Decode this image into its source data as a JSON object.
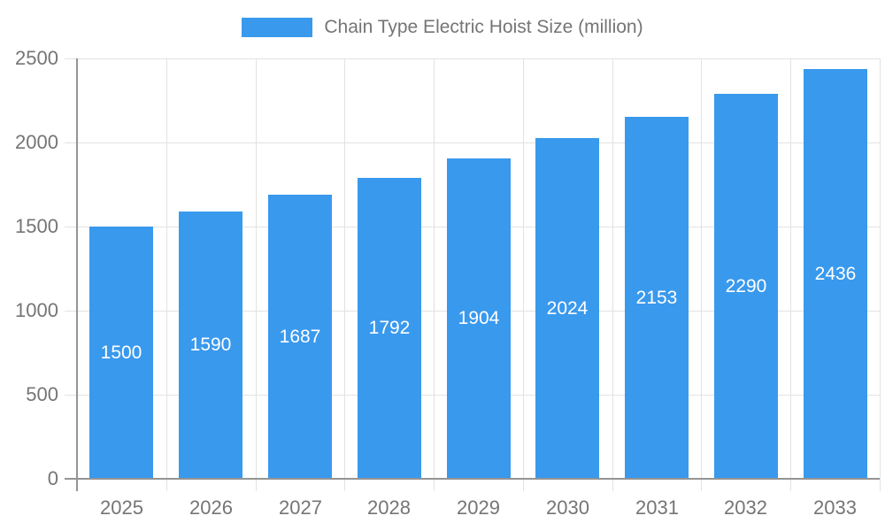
{
  "legend": {
    "label": "Chain Type Electric Hoist Size (million)"
  },
  "colors": {
    "bar": "#3999ed",
    "grid": "#e2e2e2",
    "axis": "#949494",
    "text": "#757575",
    "value_label": "#ffffff",
    "background": "#ffffff"
  },
  "chart_data": {
    "type": "bar",
    "title": "Chain Type Electric Hoist Size (million)",
    "categories": [
      "2025",
      "2026",
      "2027",
      "2028",
      "2029",
      "2030",
      "2031",
      "2032",
      "2033"
    ],
    "values": [
      1500,
      1590,
      1687,
      1792,
      1904,
      2024,
      2153,
      2290,
      2436
    ],
    "xlabel": "",
    "ylabel": "",
    "ylim": [
      0,
      2500
    ],
    "yticks": [
      0,
      500,
      1000,
      1500,
      2000,
      2500
    ],
    "grid": true,
    "legend_position": "top-center",
    "value_labels": "inside-center"
  }
}
